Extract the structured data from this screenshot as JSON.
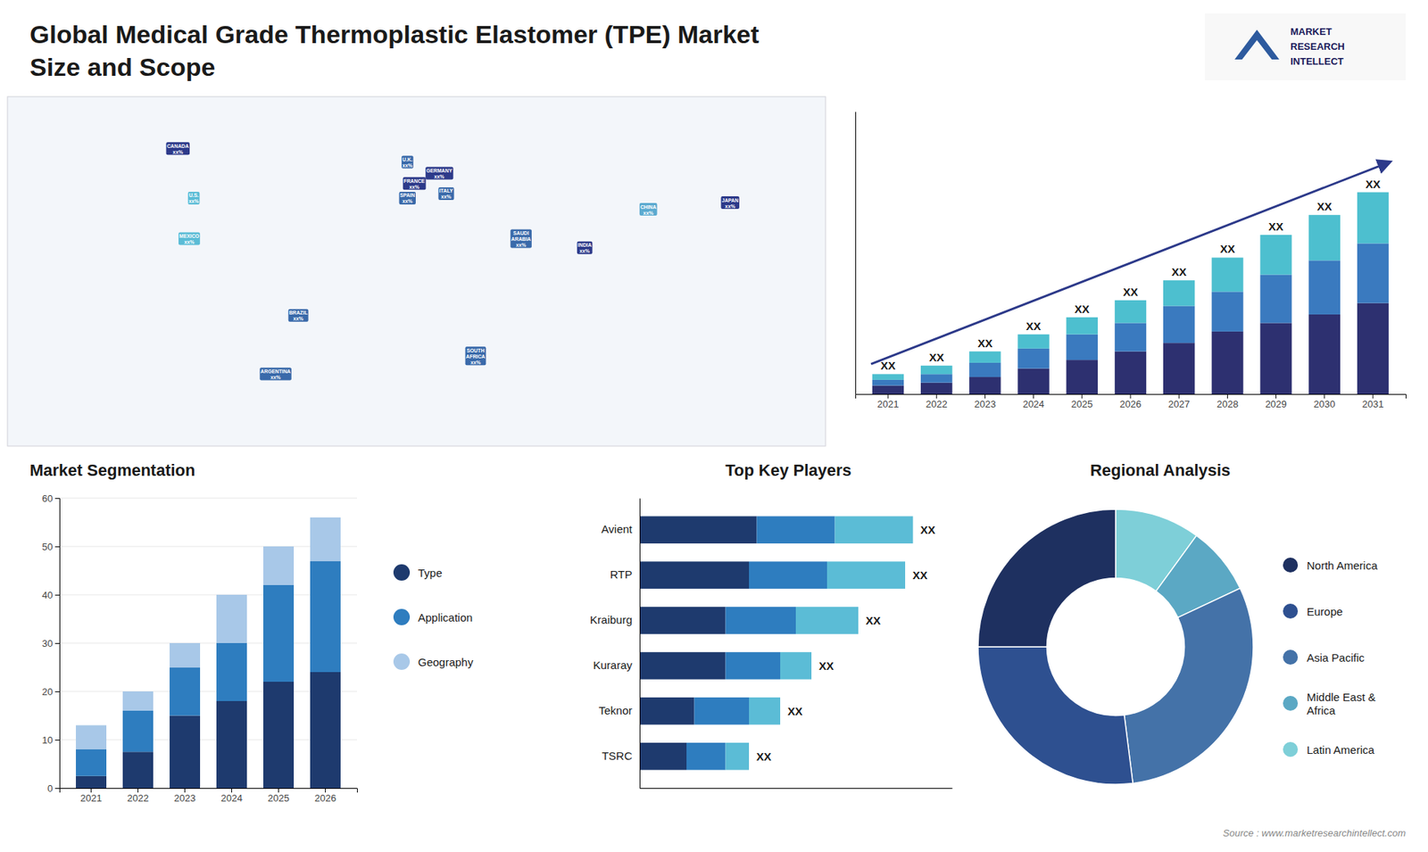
{
  "chart_data": [
    {
      "type": "bar",
      "title": "Global Medical Grade Thermoplastic Elastomer (TPE) Market",
      "subtitle": "Size and Scope",
      "categories": [
        2021,
        2022,
        2023,
        2024,
        2025,
        2026,
        2027,
        2028,
        2029,
        2030,
        2031
      ],
      "series": [
        {
          "color": "#2d3070",
          "values": [
            3,
            4,
            6,
            9,
            12,
            15,
            18,
            22,
            25,
            28,
            32
          ]
        },
        {
          "color": "#3a7abf",
          "values": [
            2,
            3,
            5,
            7,
            9,
            10,
            13,
            14,
            17,
            19,
            21
          ]
        },
        {
          "color": "#4dbfcf",
          "values": [
            2,
            3,
            4,
            5,
            6,
            8,
            9,
            12,
            14,
            16,
            18
          ]
        }
      ],
      "stacked": true,
      "ylim": [
        0,
        99.4
      ],
      "tick_labels": "x",
      "annotations": [
        "XX",
        "XX",
        "XX",
        "XX",
        "XX",
        "XX",
        "XX",
        "XX",
        "XX",
        "XX",
        "XX",
        "MARKET",
        "RESEARCH",
        "INTELLECT",
        "Source : www.marketresearchintellect.com"
      ]
    },
    {
      "type": "map",
      "categories": [
        "CANADA\nxx%",
        "U.S.\nxx%",
        "MEXICO\nxx%",
        "BRAZIL\nxx%",
        "ARGENTINA\nxx%",
        "U.K.\nxx%",
        "FRANCE\nxx%",
        "SPAIN\nxx%",
        "GERMANY\nxx%",
        "ITALY\nxx%",
        "SAUDI\nARABIA\nxx%",
        "SOUTH\nAFRICA\nxx%",
        "CHINA\nxx%",
        "INDIA\nxx%",
        "JAPAN\nxx%"
      ],
      "x": [
        -105,
        -98,
        -100,
        -52,
        -62,
        -4,
        -1,
        -4,
        10,
        13,
        46,
        26,
        102,
        74,
        138
      ],
      "y": [
        62,
        40,
        22,
        -12,
        -38,
        56,
        46.5,
        40,
        51,
        42,
        22,
        -30,
        35,
        18,
        38
      ],
      "colors": [
        "#2d3a8a",
        "#5bbcd6",
        "#5bbcd6",
        "#3a6aaa",
        "#3a6aaa",
        "#3a6aaa",
        "#2d3a8a",
        "#3a6aaa",
        "#2d3a8a",
        "#3a6aaa",
        "#3a6aaa",
        "#3a6aaa",
        "#5baad0",
        "#2d3a8a",
        "#2d3a8a"
      ],
      "xlim": [
        -180,
        180
      ],
      "ylim": [
        -70,
        85
      ],
      "tick_labels": false
    },
    {
      "type": "bar",
      "title": "Market Segmentation",
      "categories": [
        2021,
        2022,
        2023,
        2024,
        2025,
        2026
      ],
      "series": [
        {
          "name": "Type",
          "color": "#1e3a6e",
          "values": [
            2.5,
            7.5,
            15.0,
            18.0,
            22.0,
            24.0
          ]
        },
        {
          "name": "Application",
          "color": "#2e7dbf",
          "values": [
            5.5,
            8.5,
            10.0,
            12.0,
            20.0,
            23.0
          ]
        },
        {
          "name": "Geography",
          "color": "#a8c8e8",
          "values": [
            5.0,
            4.0,
            5.0,
            10.0,
            8.0,
            9.0
          ]
        }
      ],
      "stacked": true,
      "ylim": [
        0,
        60
      ],
      "yticks": [
        0,
        10,
        20,
        30,
        40,
        50,
        60
      ],
      "grid": true,
      "legend": "right"
    },
    {
      "type": "bar",
      "title": "Top Key Players",
      "orientation": "horizontal",
      "stacked": true,
      "categories": [
        "Avient",
        "RTP",
        "Kraiburg",
        "Kuraray",
        "Teknor",
        "TSRC"
      ],
      "series": [
        {
          "color": "#1e3a6e",
          "values": [
            0.3,
            0.28,
            0.22,
            0.22,
            0.14,
            0.12
          ]
        },
        {
          "color": "#2e7dbf",
          "values": [
            0.2,
            0.2,
            0.18,
            0.14,
            0.14,
            0.1
          ]
        },
        {
          "color": "#5bbcd6",
          "values": [
            0.2,
            0.2,
            0.16,
            0.08,
            0.08,
            0.06
          ]
        }
      ],
      "xlim": [
        0,
        0.8
      ],
      "tick_labels": "y",
      "annotations": [
        "XX",
        "XX",
        "XX",
        "XX",
        "XX",
        "XX"
      ]
    },
    {
      "type": "pie",
      "title": "Regional Analysis",
      "categories": [
        "Latin America",
        "Middle East &\nAfrica",
        "Asia Pacific",
        "Europe",
        "North America"
      ],
      "values": [
        10,
        8,
        30,
        27,
        25
      ],
      "colors": [
        "#7ecfd8",
        "#5ba8c4",
        "#4472a8",
        "#2e5090",
        "#1e3060"
      ],
      "legend": "right"
    }
  ]
}
